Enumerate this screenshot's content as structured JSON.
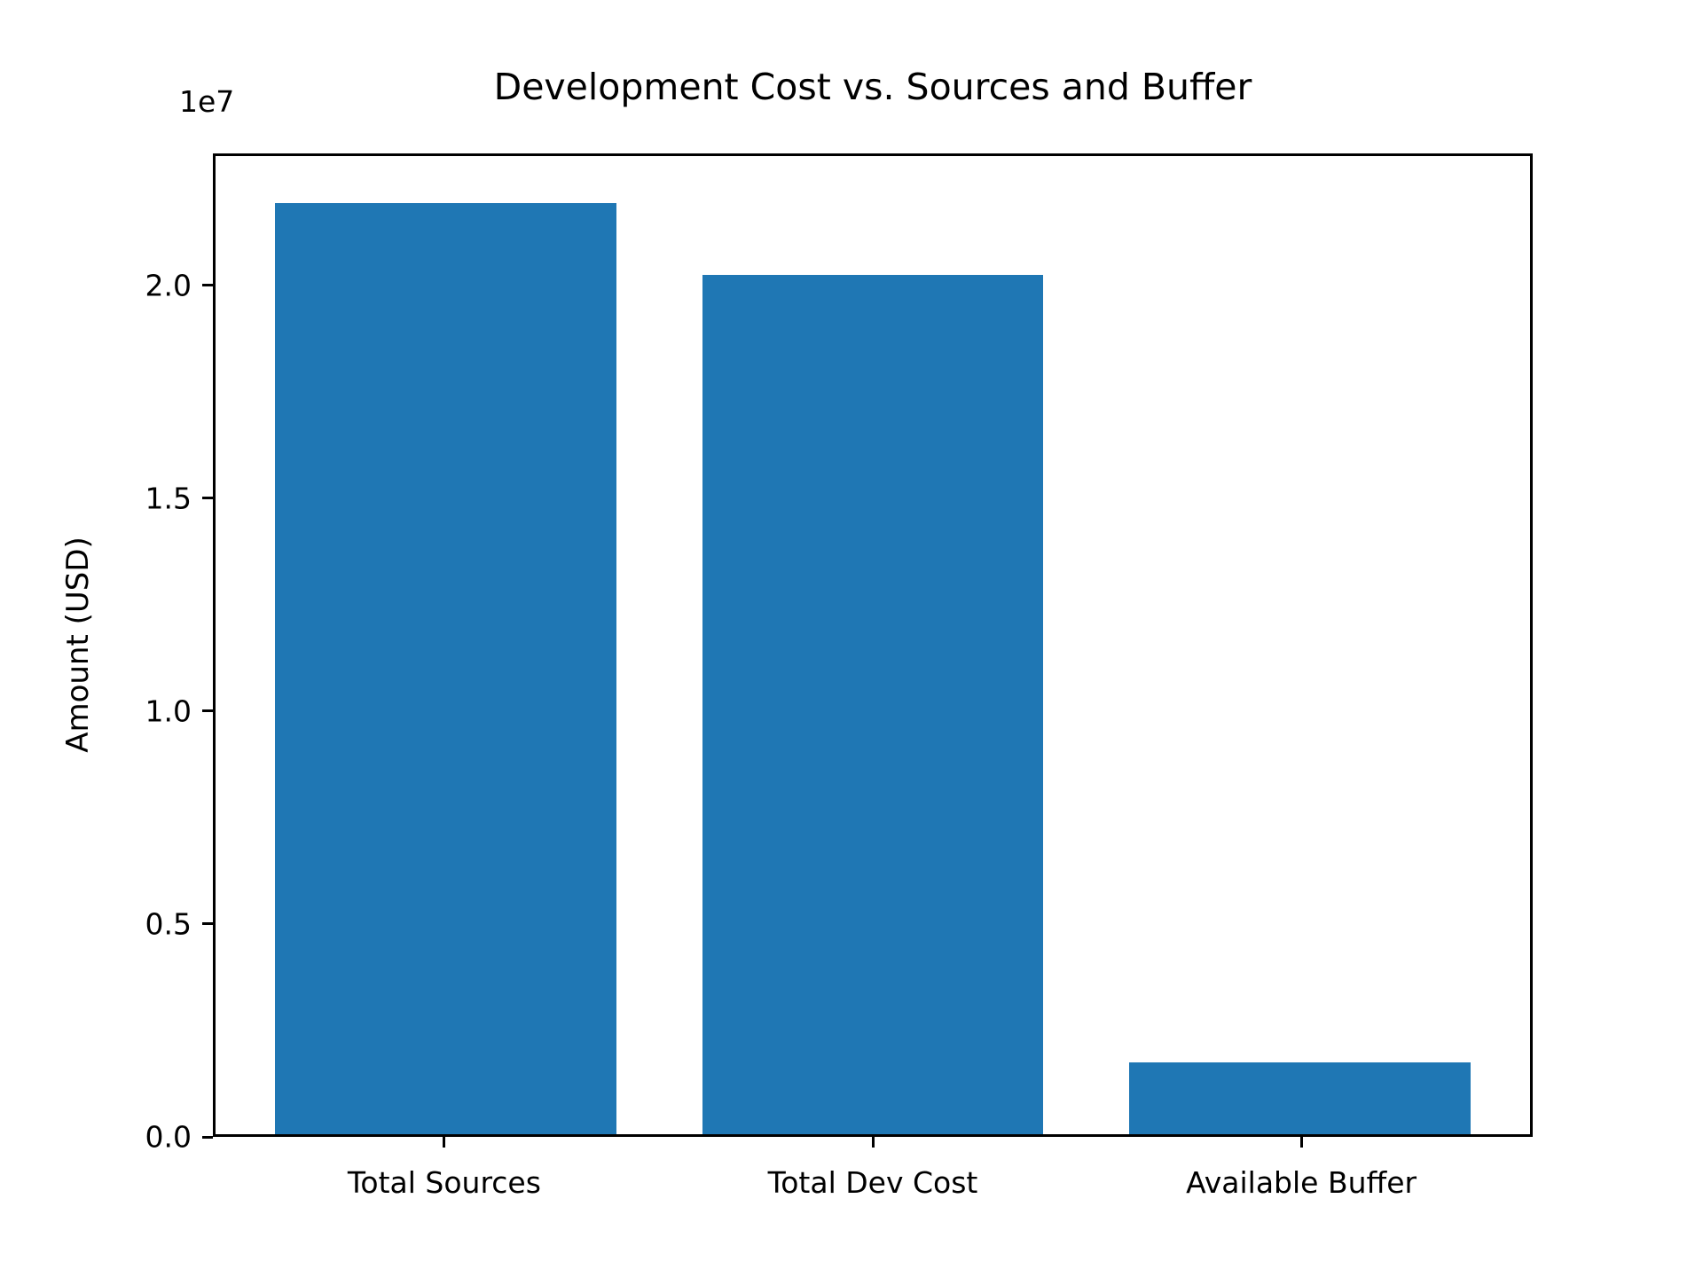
{
  "chart_data": {
    "type": "bar",
    "title": "Development Cost vs. Sources and Buffer",
    "categories": [
      "Total Sources",
      "Total Dev Cost",
      "Available Buffer"
    ],
    "values": [
      22000000,
      20300000,
      1700000
    ],
    "xlabel": "",
    "ylabel": "Amount (USD)",
    "ylim": [
      0,
      23100000
    ],
    "yticks": {
      "values": [
        0,
        5000000,
        10000000,
        15000000,
        20000000
      ],
      "labels": [
        "0.0",
        "0.5",
        "1.0",
        "1.5",
        "2.0"
      ]
    },
    "offset_text": "1e7",
    "bar_color": "#1f77b4",
    "bar_rel_width": 0.8,
    "axis_color": "#000000",
    "grid": false,
    "legend": null
  }
}
